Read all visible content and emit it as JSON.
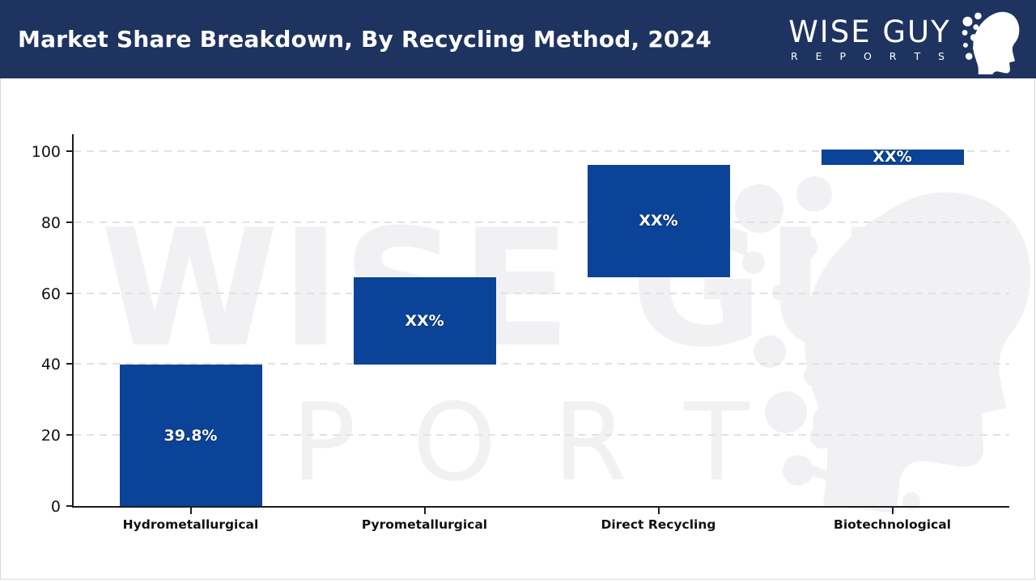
{
  "header": {
    "title": "Market Share Breakdown, By Recycling Method, 2024",
    "logo": {
      "line1": "WISE GUY",
      "line2": "R E P O R T S",
      "icon": "head-profile-dots-icon"
    }
  },
  "watermark": {
    "line1": "WISE GUY",
    "line2": "P O R T S"
  },
  "colors": {
    "header_bg": "#1f3360",
    "bar": "#0a4397",
    "grid": "#e2e2e2",
    "watermark": "#f1f1f3",
    "axis": "#1c1c1c",
    "bar_label": "#ffffff"
  },
  "chart_data": {
    "type": "bar",
    "subtype": "waterfall",
    "title": "Market Share Breakdown, By Recycling Method, 2024",
    "xlabel": "",
    "ylabel": "",
    "categories": [
      "Hydrometallurgical",
      "Pyrometallurgical",
      "Direct Recycling",
      "Biotechnological"
    ],
    "segments": [
      {
        "category": "Hydrometallurgical",
        "start": 0,
        "end": 39.8,
        "label": "39.8%"
      },
      {
        "category": "Pyrometallurgical",
        "start": 39.8,
        "end": 64.5,
        "label": "XX%"
      },
      {
        "category": "Direct Recycling",
        "start": 64.5,
        "end": 96.2,
        "label": "XX%"
      },
      {
        "category": "Biotechnological",
        "start": 96.2,
        "end": 100.5,
        "label": "XX%"
      }
    ],
    "ylim": [
      0,
      104.5
    ],
    "yticks": [
      0,
      20,
      40,
      60,
      80,
      100
    ],
    "grid": "horizontal-dashed",
    "legend": "none"
  }
}
